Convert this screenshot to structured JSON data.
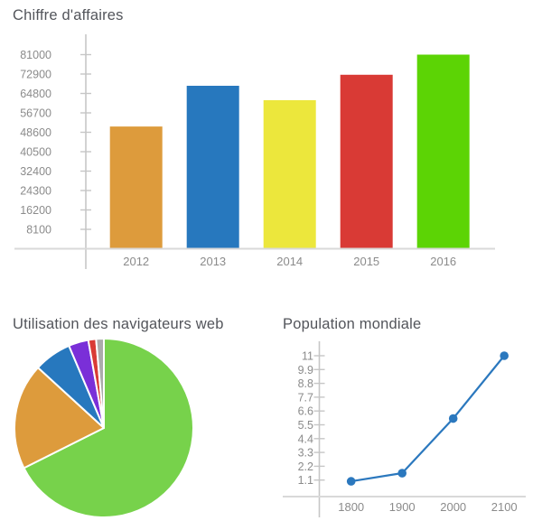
{
  "page": {
    "background": "#ffffff"
  },
  "colors": {
    "title": "#53555b",
    "axis_line": "#c6c6c6",
    "baseline": "#d9d9d9",
    "tick": "#c6c6c6",
    "axis_label": "#8b8b8b",
    "line_series": "#2b78be"
  },
  "chart_data": [
    {
      "type": "bar",
      "title": "Chiffre d'affaires",
      "categories": [
        "2012",
        "2013",
        "2014",
        "2015",
        "2016"
      ],
      "values": [
        51000,
        68000,
        62000,
        72600,
        81000
      ],
      "bar_colors": [
        "#dd9b3c",
        "#2778be",
        "#ece73c",
        "#d93a35",
        "#5cd405"
      ],
      "y_ticks": [
        8100,
        16200,
        24300,
        32400,
        40500,
        48600,
        56700,
        64800,
        72900,
        81000
      ],
      "ylim": [
        0,
        81000
      ],
      "xlabel": "",
      "ylabel": "",
      "grid": false,
      "legend": "none"
    },
    {
      "type": "pie",
      "title": "Utilisation des navigateurs web",
      "unit": "percent",
      "start_angle_deg": 0,
      "direction": "clockwise",
      "slices": [
        {
          "name": "green-slice",
          "value": 67.6,
          "color": "#77d24b"
        },
        {
          "name": "orange-slice",
          "value": 19.2,
          "color": "#dd9b3c"
        },
        {
          "name": "blue-slice",
          "value": 6.8,
          "color": "#2778be"
        },
        {
          "name": "purple-slice",
          "value": 3.6,
          "color": "#7a2fd8"
        },
        {
          "name": "red-slice",
          "value": 1.4,
          "color": "#d93a35"
        },
        {
          "name": "gray-slice",
          "value": 1.4,
          "color": "#ababab"
        }
      ],
      "separator_color": "#ffffff",
      "legend": "none"
    },
    {
      "type": "line",
      "title": "Population mondiale",
      "x": [
        1800,
        1900,
        2000,
        2100
      ],
      "y": [
        1.0,
        1.65,
        6.0,
        11.0
      ],
      "y_ticks": [
        1.1,
        2.2,
        3.3,
        4.4,
        5.5,
        6.6,
        7.7,
        8.8,
        9.9,
        11
      ],
      "ylim": [
        0,
        11.55
      ],
      "color": "#2b78be",
      "markers": true,
      "xlabel": "",
      "ylabel": "",
      "grid": false,
      "legend": "none"
    }
  ]
}
